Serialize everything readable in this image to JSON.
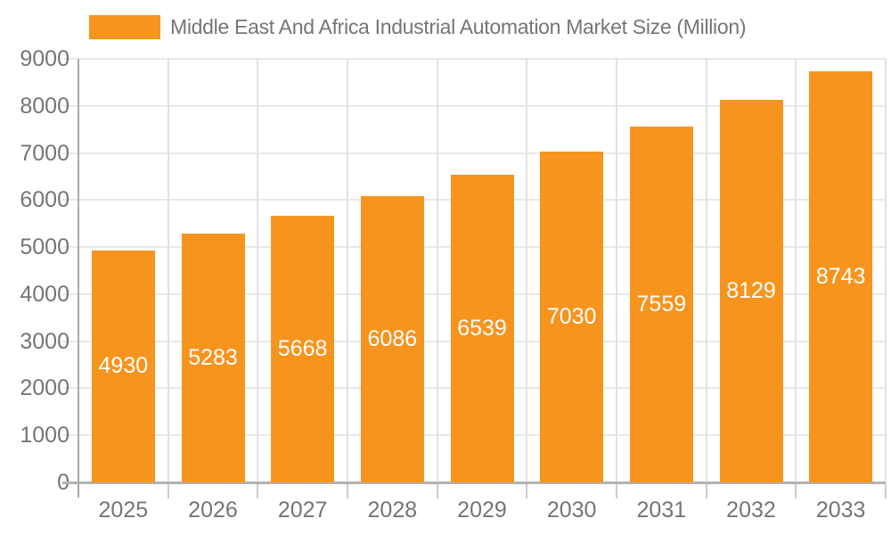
{
  "chart_data": {
    "type": "bar",
    "title": "Middle East And Africa Industrial Automation Market Size (Million)",
    "series": [
      {
        "name": "Middle East And Africa Industrial Automation Market Size (Million)",
        "values": [
          4930,
          5283,
          5668,
          6086,
          6539,
          7030,
          7559,
          8129,
          8743
        ]
      }
    ],
    "categories": [
      "2025",
      "2026",
      "2027",
      "2028",
      "2029",
      "2030",
      "2031",
      "2032",
      "2033"
    ],
    "xlabel": "",
    "ylabel": "",
    "ylim": [
      0,
      9000
    ],
    "yticks": [
      0,
      1000,
      2000,
      3000,
      4000,
      5000,
      6000,
      7000,
      8000,
      9000
    ],
    "grid": true,
    "legend_position": "top-left",
    "value_label_position": "inside-center",
    "colors": {
      "bar": "#f7941e",
      "value_label": "#ffffff",
      "axis_line": "#aaaaaa",
      "baseline": "#b3b3b3",
      "gridline_h": "#e8e8e8",
      "gridline_v": "#e2e2e2",
      "tick_mark": "#cccccc",
      "tick_label": "#757575",
      "background": "#ffffff"
    }
  }
}
